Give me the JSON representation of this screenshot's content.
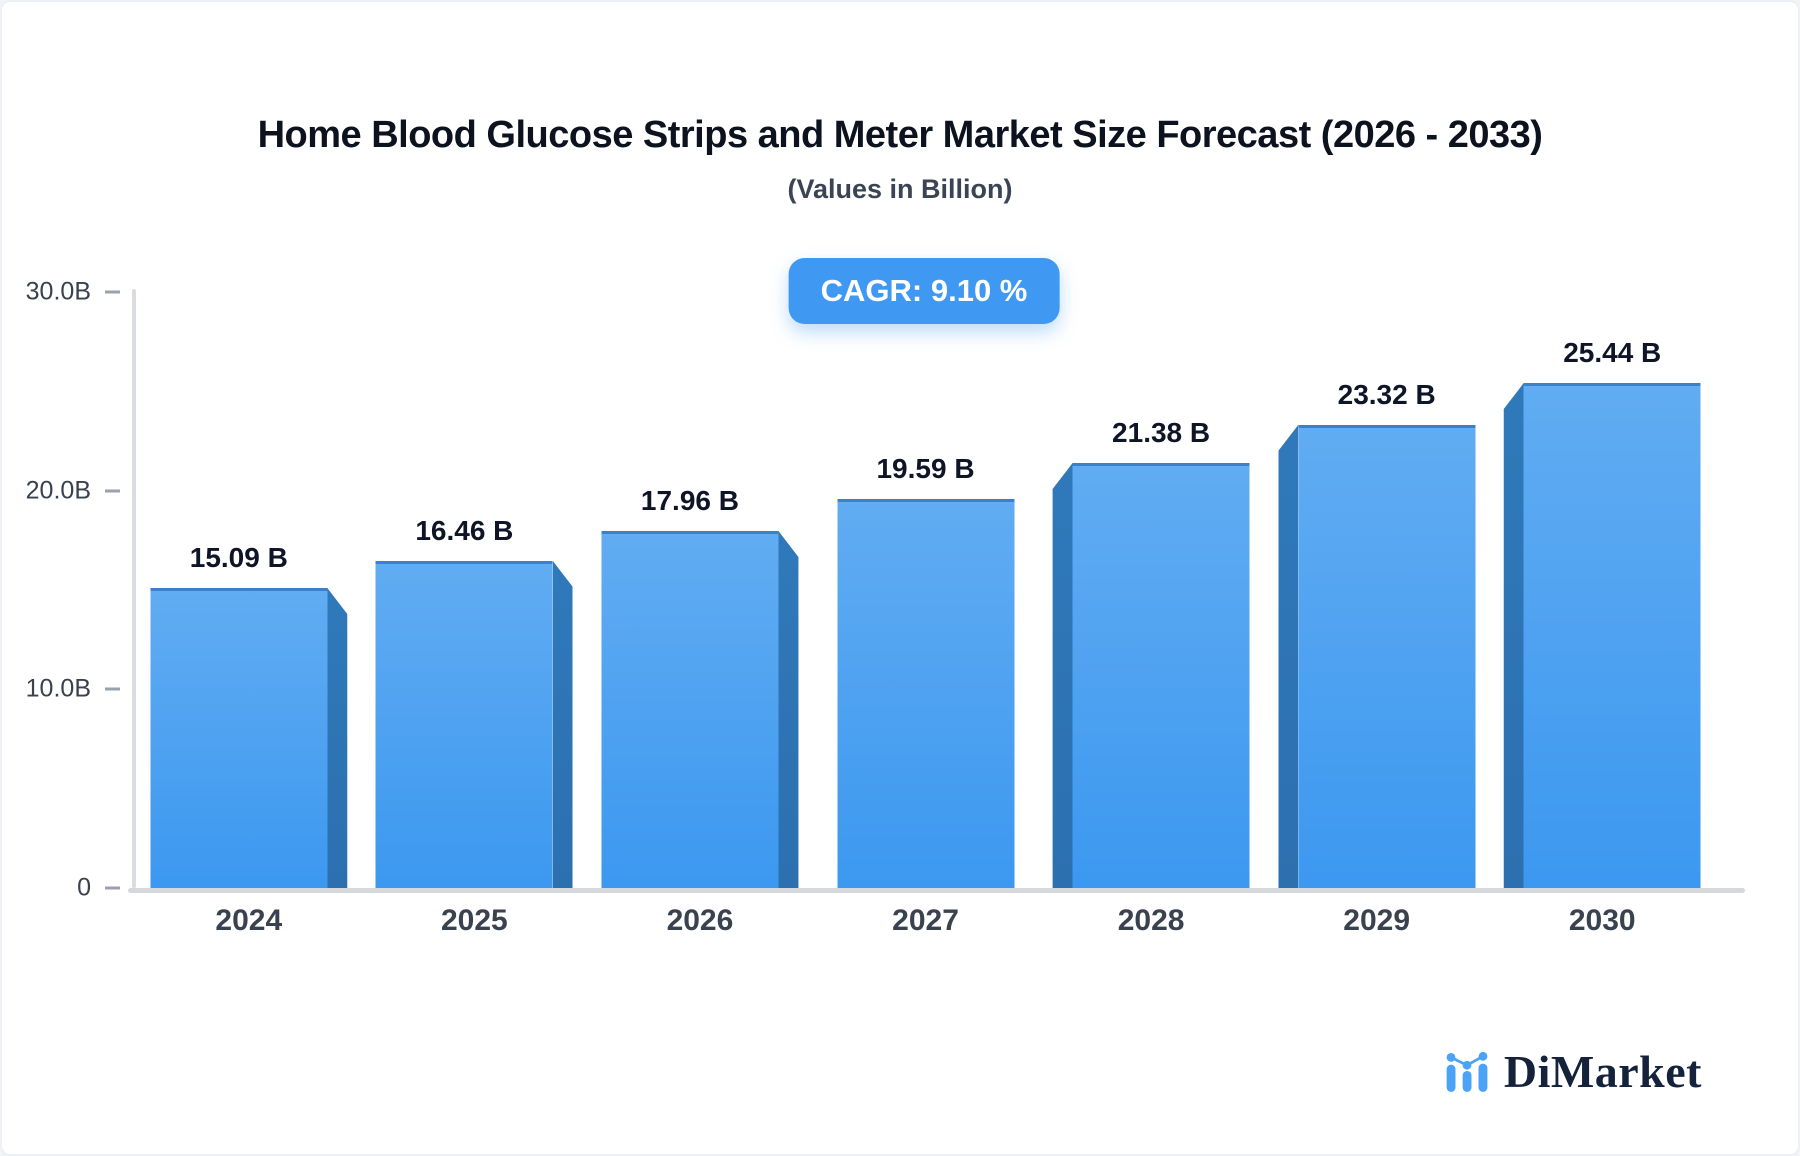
{
  "header": {
    "title": "Home Blood Glucose Strips and Meter Market Size Forecast (2026 - 2033)",
    "subtitle": "(Values in Billion)",
    "cagr_badge": "CAGR: 9.10 %"
  },
  "branding": {
    "logo_text": "DiMarket",
    "logo_icon": "bar-chart-logo-icon"
  },
  "colors": {
    "bar_gradient_top": "#61ACF2",
    "bar_gradient_bottom": "#3C98F0",
    "bar_side_face": "#2D74B4",
    "bar_top_edge": "#3C80C9",
    "badge_background": "#3F99F2",
    "badge_text": "#FFFFFF",
    "axis_line": "#D9DCE1",
    "baseline": "#D5D8DD",
    "title_text": "#0C121E",
    "tick_text": "#39414F",
    "logo_navy": "#15223C",
    "logo_blue": "#4BA3F6"
  },
  "chart_data": {
    "type": "bar",
    "title": "Home Blood Glucose Strips and Meter Market Size Forecast (2026 - 2033)",
    "subtitle": "(Values in Billion)",
    "categories": [
      "2024",
      "2025",
      "2026",
      "2027",
      "2028",
      "2029",
      "2030"
    ],
    "values": [
      15.09,
      16.46,
      17.96,
      19.59,
      21.38,
      23.32,
      25.44
    ],
    "value_labels": [
      "15.09 B",
      "16.46 B",
      "17.96 B",
      "19.59 B",
      "21.38 B",
      "23.32 B",
      "25.44 B"
    ],
    "unit": "Billion",
    "xlabel": "",
    "ylabel": "",
    "ylim": [
      0,
      30
    ],
    "yticks": [
      {
        "value": 0,
        "label": "0"
      },
      {
        "value": 10,
        "label": "10.0B"
      },
      {
        "value": 20,
        "label": "20.0B"
      },
      {
        "value": 30,
        "label": "30.0B"
      }
    ],
    "grid": false,
    "legend_position": "none",
    "style": "3d-perspective-bars-center-vanishing-point"
  }
}
